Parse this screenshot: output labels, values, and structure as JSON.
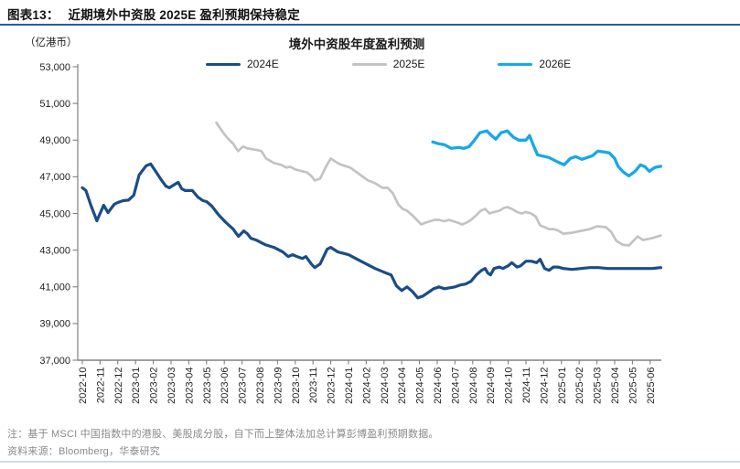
{
  "header": {
    "figure_label": "图表13：",
    "title": "近期境外中资股 2025E 盈利预期保持稳定"
  },
  "chart_data": {
    "type": "line",
    "title": "境外中资股年度盈利预测",
    "unit_label": "（亿港币）",
    "grid": false,
    "legend_position": "top-center",
    "ylim": [
      37000,
      53000
    ],
    "ytick_step": 2000,
    "x_categories": [
      "2022-10",
      "2022-11",
      "2022-12",
      "2023-01",
      "2023-02",
      "2023-03",
      "2023-04",
      "2023-05",
      "2023-06",
      "2023-07",
      "2023-08",
      "2023-09",
      "2023-10",
      "2023-11",
      "2023-12",
      "2024-01",
      "2024-02",
      "2024-03",
      "2024-04",
      "2024-05",
      "2024-06",
      "2024-07",
      "2024-08",
      "2024-09",
      "2024-10",
      "2024-11",
      "2024-12",
      "2025-01",
      "2025-02",
      "2025-03",
      "2025-04",
      "2025-05",
      "2025-06"
    ],
    "series": [
      {
        "name": "2024E",
        "color": "#1B4D85",
        "width": 3.2,
        "points": [
          [
            0,
            46400
          ],
          [
            0.2,
            46250
          ],
          [
            0.5,
            45400
          ],
          [
            0.82,
            44600
          ],
          [
            1.0,
            45000
          ],
          [
            1.2,
            45450
          ],
          [
            1.45,
            45050
          ],
          [
            1.8,
            45500
          ],
          [
            2.0,
            45600
          ],
          [
            2.3,
            45700
          ],
          [
            2.6,
            45730
          ],
          [
            2.9,
            46000
          ],
          [
            3.2,
            47100
          ],
          [
            3.6,
            47600
          ],
          [
            3.85,
            47700
          ],
          [
            4.1,
            47350
          ],
          [
            4.4,
            46900
          ],
          [
            4.7,
            46500
          ],
          [
            4.9,
            46400
          ],
          [
            5.15,
            46550
          ],
          [
            5.4,
            46700
          ],
          [
            5.6,
            46350
          ],
          [
            5.8,
            46250
          ],
          [
            6.2,
            46250
          ],
          [
            6.5,
            45900
          ],
          [
            6.8,
            45700
          ],
          [
            7.0,
            45650
          ],
          [
            7.3,
            45400
          ],
          [
            7.7,
            44900
          ],
          [
            8.1,
            44500
          ],
          [
            8.5,
            44150
          ],
          [
            8.8,
            43750
          ],
          [
            9.1,
            44050
          ],
          [
            9.3,
            43900
          ],
          [
            9.5,
            43650
          ],
          [
            9.8,
            43550
          ],
          [
            10.3,
            43300
          ],
          [
            10.8,
            43150
          ],
          [
            11.3,
            42900
          ],
          [
            11.6,
            42650
          ],
          [
            11.85,
            42750
          ],
          [
            12.1,
            42650
          ],
          [
            12.4,
            42550
          ],
          [
            12.6,
            42650
          ],
          [
            12.9,
            42250
          ],
          [
            13.1,
            42050
          ],
          [
            13.4,
            42250
          ],
          [
            13.8,
            43050
          ],
          [
            14.0,
            43150
          ],
          [
            14.4,
            42900
          ],
          [
            15.0,
            42750
          ],
          [
            15.5,
            42500
          ],
          [
            16.0,
            42250
          ],
          [
            16.5,
            42000
          ],
          [
            17.0,
            41800
          ],
          [
            17.4,
            41650
          ],
          [
            17.7,
            41050
          ],
          [
            18.0,
            40800
          ],
          [
            18.3,
            41000
          ],
          [
            18.6,
            40750
          ],
          [
            18.9,
            40400
          ],
          [
            19.2,
            40500
          ],
          [
            19.5,
            40700
          ],
          [
            19.8,
            40900
          ],
          [
            20.1,
            41000
          ],
          [
            20.4,
            40900
          ],
          [
            20.7,
            40950
          ],
          [
            21.0,
            41000
          ],
          [
            21.3,
            41100
          ],
          [
            21.6,
            41150
          ],
          [
            21.9,
            41300
          ],
          [
            22.2,
            41650
          ],
          [
            22.5,
            41900
          ],
          [
            22.7,
            42000
          ],
          [
            22.85,
            41750
          ],
          [
            23.0,
            41650
          ],
          [
            23.2,
            42000
          ],
          [
            23.5,
            42080
          ],
          [
            23.7,
            42000
          ],
          [
            24.0,
            42150
          ],
          [
            24.2,
            42320
          ],
          [
            24.5,
            42080
          ],
          [
            24.7,
            42150
          ],
          [
            25.0,
            42400
          ],
          [
            25.3,
            42400
          ],
          [
            25.6,
            42320
          ],
          [
            25.8,
            42500
          ],
          [
            26.05,
            42000
          ],
          [
            26.3,
            41900
          ],
          [
            26.55,
            42080
          ],
          [
            26.8,
            42080
          ],
          [
            27.1,
            42000
          ],
          [
            27.6,
            41950
          ],
          [
            28.1,
            42000
          ],
          [
            28.6,
            42050
          ],
          [
            29.1,
            42050
          ],
          [
            29.6,
            42000
          ],
          [
            30.1,
            42000
          ],
          [
            30.6,
            42000
          ],
          [
            31.1,
            42000
          ],
          [
            31.6,
            42000
          ],
          [
            32.1,
            42000
          ],
          [
            32.6,
            42050
          ]
        ]
      },
      {
        "name": "2025E",
        "color": "#C3C3C3",
        "width": 2.7,
        "points": [
          [
            7.55,
            49950
          ],
          [
            7.8,
            49600
          ],
          [
            8.1,
            49200
          ],
          [
            8.5,
            48800
          ],
          [
            8.78,
            48400
          ],
          [
            9.05,
            48650
          ],
          [
            9.3,
            48550
          ],
          [
            9.6,
            48500
          ],
          [
            9.9,
            48450
          ],
          [
            10.1,
            48400
          ],
          [
            10.35,
            48000
          ],
          [
            10.8,
            47750
          ],
          [
            11.2,
            47650
          ],
          [
            11.5,
            47500
          ],
          [
            11.7,
            47550
          ],
          [
            12.0,
            47400
          ],
          [
            12.4,
            47300
          ],
          [
            12.65,
            47250
          ],
          [
            12.9,
            47050
          ],
          [
            13.1,
            46800
          ],
          [
            13.4,
            46900
          ],
          [
            13.7,
            47500
          ],
          [
            14.0,
            48000
          ],
          [
            14.3,
            47800
          ],
          [
            14.6,
            47650
          ],
          [
            15.1,
            47500
          ],
          [
            15.6,
            47150
          ],
          [
            16.1,
            46800
          ],
          [
            16.5,
            46650
          ],
          [
            16.9,
            46400
          ],
          [
            17.2,
            46400
          ],
          [
            17.5,
            46100
          ],
          [
            17.8,
            45500
          ],
          [
            18.05,
            45250
          ],
          [
            18.3,
            45150
          ],
          [
            18.6,
            44900
          ],
          [
            18.85,
            44650
          ],
          [
            19.1,
            44400
          ],
          [
            19.35,
            44500
          ],
          [
            19.6,
            44575
          ],
          [
            19.85,
            44650
          ],
          [
            20.1,
            44650
          ],
          [
            20.4,
            44575
          ],
          [
            20.65,
            44650
          ],
          [
            20.9,
            44575
          ],
          [
            21.15,
            44500
          ],
          [
            21.4,
            44400
          ],
          [
            21.65,
            44500
          ],
          [
            21.9,
            44650
          ],
          [
            22.2,
            44900
          ],
          [
            22.45,
            45150
          ],
          [
            22.7,
            45250
          ],
          [
            22.95,
            45000
          ],
          [
            23.2,
            45080
          ],
          [
            23.5,
            45150
          ],
          [
            23.75,
            45300
          ],
          [
            23.95,
            45350
          ],
          [
            24.2,
            45250
          ],
          [
            24.5,
            45080
          ],
          [
            24.75,
            45000
          ],
          [
            25.0,
            45080
          ],
          [
            25.3,
            45000
          ],
          [
            25.55,
            44830
          ],
          [
            25.8,
            44350
          ],
          [
            26.05,
            44250
          ],
          [
            26.3,
            44150
          ],
          [
            26.55,
            44150
          ],
          [
            26.8,
            44080
          ],
          [
            27.1,
            43900
          ],
          [
            27.6,
            43950
          ],
          [
            28.1,
            44050
          ],
          [
            28.6,
            44150
          ],
          [
            29.0,
            44300
          ],
          [
            29.5,
            44250
          ],
          [
            29.8,
            44000
          ],
          [
            30.1,
            43500
          ],
          [
            30.45,
            43300
          ],
          [
            30.8,
            43250
          ],
          [
            31.3,
            43750
          ],
          [
            31.6,
            43550
          ],
          [
            32.1,
            43650
          ],
          [
            32.6,
            43800
          ]
        ]
      },
      {
        "name": "2026E",
        "color": "#17A8E8",
        "width": 3.3,
        "points": [
          [
            19.75,
            48900
          ],
          [
            20.1,
            48800
          ],
          [
            20.4,
            48750
          ],
          [
            20.8,
            48550
          ],
          [
            21.2,
            48600
          ],
          [
            21.5,
            48550
          ],
          [
            21.8,
            48650
          ],
          [
            22.1,
            49000
          ],
          [
            22.4,
            49400
          ],
          [
            22.8,
            49500
          ],
          [
            23.05,
            49250
          ],
          [
            23.3,
            49050
          ],
          [
            23.6,
            49400
          ],
          [
            23.95,
            49500
          ],
          [
            24.3,
            49150
          ],
          [
            24.6,
            49000
          ],
          [
            25.0,
            49000
          ],
          [
            25.2,
            49250
          ],
          [
            25.45,
            48650
          ],
          [
            25.65,
            48200
          ],
          [
            25.85,
            48150
          ],
          [
            26.3,
            48050
          ],
          [
            26.8,
            47800
          ],
          [
            27.15,
            47650
          ],
          [
            27.5,
            48000
          ],
          [
            27.8,
            48100
          ],
          [
            28.15,
            47950
          ],
          [
            28.45,
            48050
          ],
          [
            28.75,
            48150
          ],
          [
            29.05,
            48400
          ],
          [
            29.4,
            48350
          ],
          [
            29.7,
            48300
          ],
          [
            30.0,
            48000
          ],
          [
            30.2,
            47550
          ],
          [
            30.5,
            47250
          ],
          [
            30.8,
            47050
          ],
          [
            31.15,
            47300
          ],
          [
            31.45,
            47650
          ],
          [
            31.7,
            47550
          ],
          [
            31.95,
            47300
          ],
          [
            32.25,
            47500
          ],
          [
            32.6,
            47570
          ]
        ]
      }
    ]
  },
  "footer": {
    "note": "注：基于 MSCI 中国指数中的港股、美股成分股，自下而上整体法加总计算彭博盈利预期数据。",
    "source": "资料来源：Bloomberg，华泰研究"
  },
  "colors": {
    "header_rule": "#2B5AA0",
    "bottom_rule": "#D3D9E0",
    "axis": "#808080",
    "tick_text": "#1f1f1f",
    "footnote_text": "#8a8a8a"
  }
}
